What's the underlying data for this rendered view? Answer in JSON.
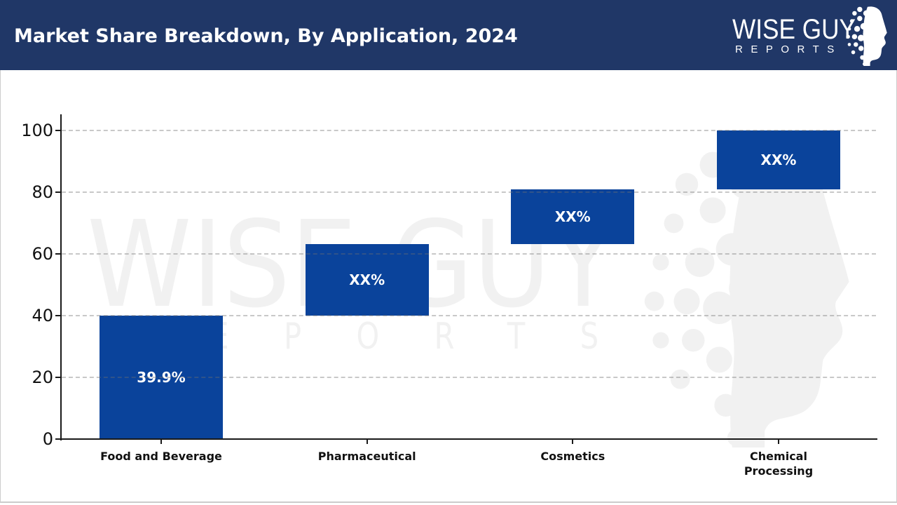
{
  "header": {
    "title": "Market Share Breakdown, By Application, 2024",
    "logo": {
      "brand_line1": "WISE GUY",
      "brand_line2": "REPORTS"
    }
  },
  "watermark": {
    "text_line1": "WISE GUY",
    "text_line2": "REPORTS"
  },
  "colors": {
    "header_bg": "#203767",
    "bar": "#0a439b",
    "axis": "#1a1a1a",
    "grid": "#c9c9c9",
    "watermark": "#f1f1f1",
    "bar_label_text": "#ffffff",
    "tick_text": "#111111"
  },
  "chart_data": {
    "type": "bar",
    "subtype": "waterfall",
    "title": "Market Share Breakdown, By Application, 2024",
    "categories": [
      "Food and Beverage",
      "Pharmaceutical",
      "Cosmetics",
      "Chemical Processing"
    ],
    "bars": [
      {
        "category": "Food and Beverage",
        "display": "Food and Beverage",
        "start": 0,
        "end": 39.9,
        "label": "39.9%"
      },
      {
        "category": "Pharmaceutical",
        "display": "Pharmaceutical",
        "start": 39.9,
        "end": 63.2,
        "label": "XX%"
      },
      {
        "category": "Cosmetics",
        "display": "Cosmetics",
        "start": 63.2,
        "end": 80.9,
        "label": "XX%"
      },
      {
        "category": "Chemical Processing",
        "display": "Chemical\nProcessing",
        "start": 80.9,
        "end": 100,
        "label": "XX%"
      }
    ],
    "ylim": [
      0,
      100
    ],
    "yticks": [
      0,
      20,
      40,
      60,
      80,
      100
    ],
    "xlabel": "",
    "ylabel": "",
    "grid": "horizontal-dashed",
    "legend": "none"
  }
}
